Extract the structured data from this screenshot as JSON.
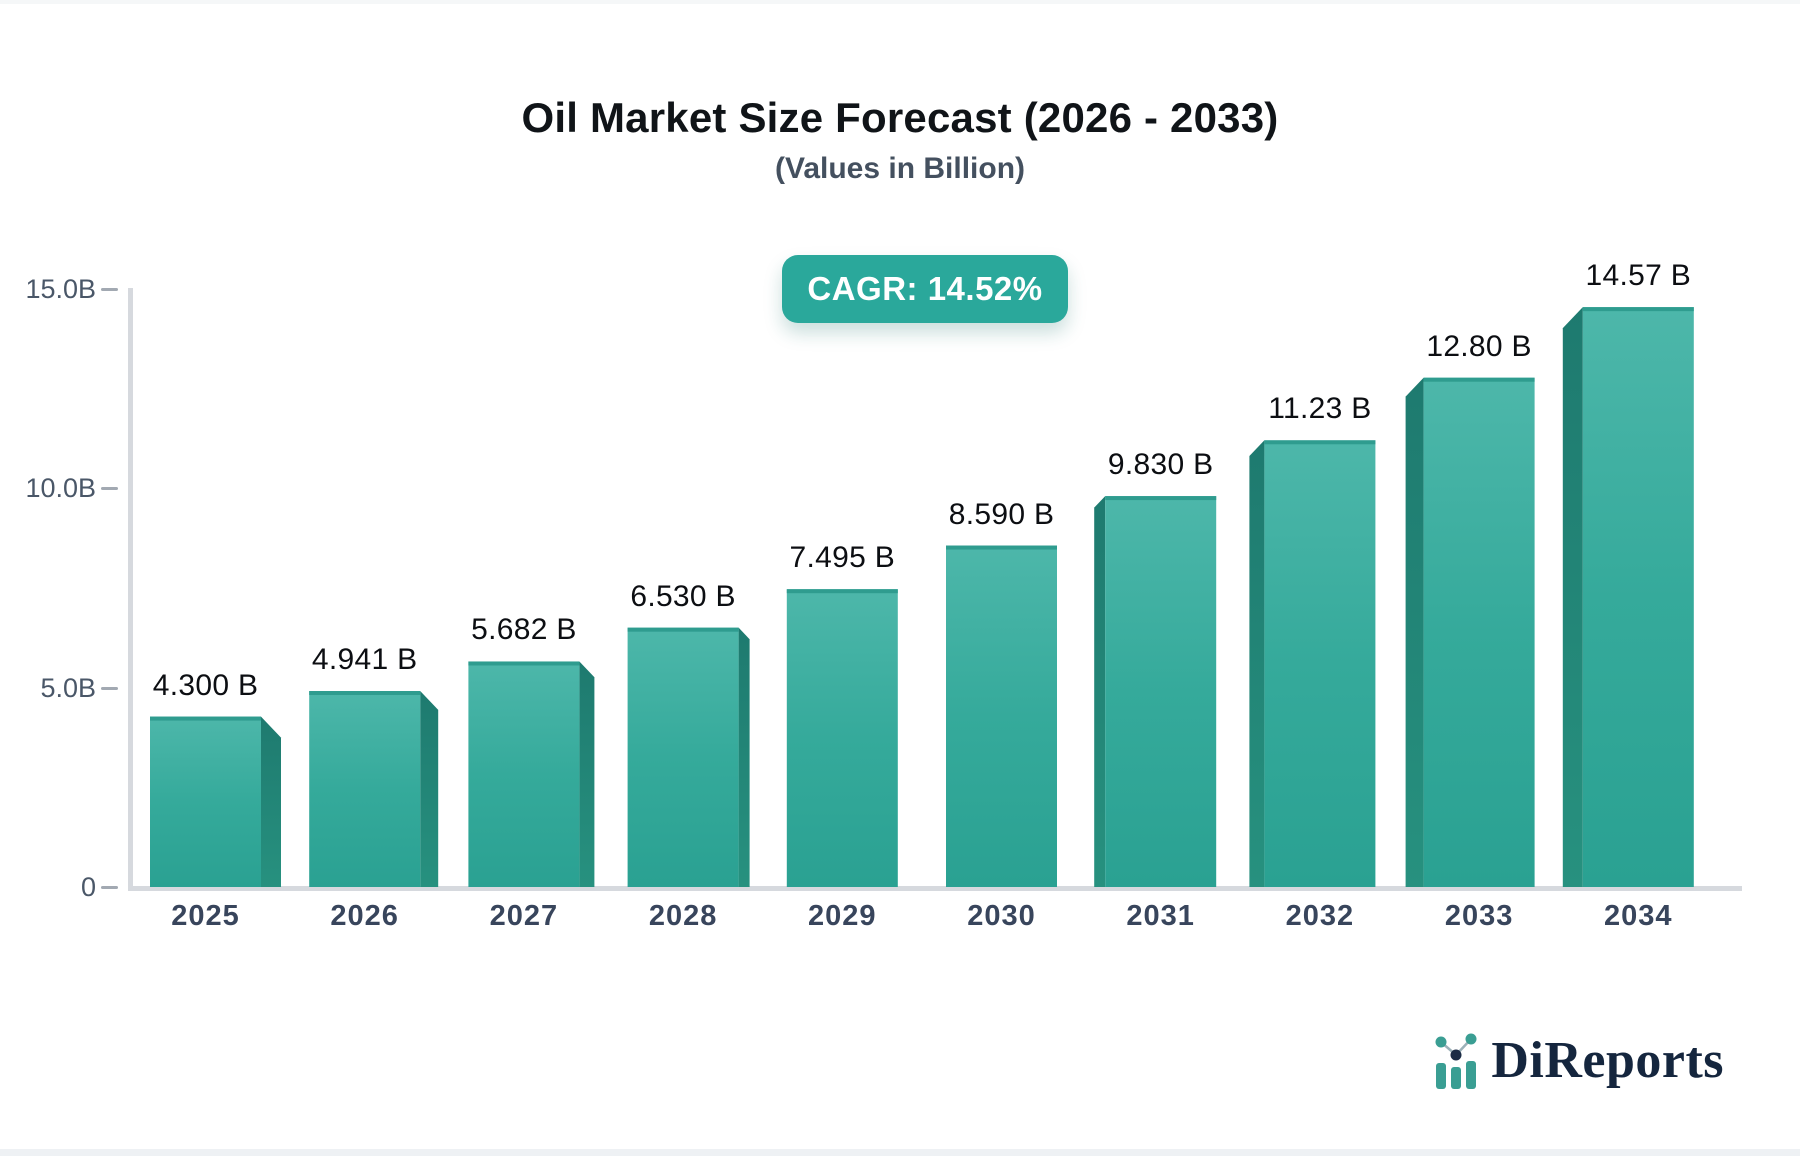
{
  "header": {
    "title": "Oil Market Size Forecast (2026 - 2033)",
    "subtitle": "(Values in Billion)",
    "cagr_badge": "CAGR: 14.52%"
  },
  "chart_data": {
    "type": "bar",
    "title": "Oil Market Size Forecast (2026 - 2033)",
    "subtitle": "(Values in Billion)",
    "unit": "Billion",
    "cagr": "14.52%",
    "categories": [
      "2025",
      "2026",
      "2027",
      "2028",
      "2029",
      "2030",
      "2031",
      "2032",
      "2033",
      "2034"
    ],
    "values": [
      4.3,
      4.941,
      5.682,
      6.53,
      7.495,
      8.59,
      9.83,
      11.23,
      12.8,
      14.57
    ],
    "labels": [
      "4.300 B",
      "4.941 B",
      "5.682 B",
      "6.530 B",
      "7.495 B",
      "8.590 B",
      "9.830 B",
      "11.23 B",
      "12.80 B",
      "14.57 B"
    ],
    "ylim": [
      0,
      15
    ],
    "yticks": [
      {
        "value": 15,
        "label": "15.0B"
      },
      {
        "value": 10,
        "label": "10.0B"
      },
      {
        "value": 5,
        "label": "5.0B"
      },
      {
        "value": 0,
        "label": "0"
      }
    ],
    "grid": false,
    "legend": false
  },
  "branding": {
    "logo_text": "DiReports",
    "logo_icon": "bar-chart-trend-icon"
  },
  "colors": {
    "badge": "#2aa89b",
    "bar_face_top": "#4db7aa",
    "bar_face_mid": "#35aa9b",
    "bar_face_bottom": "#2aa192",
    "bar_top_edge": "#2f9c8f",
    "bar_side_top": "#1e7a6f",
    "bar_side_bottom": "#27917f",
    "axis_line": "#d6d9de",
    "logo_navy": "#15263e",
    "logo_teal": "#3a9e93"
  }
}
